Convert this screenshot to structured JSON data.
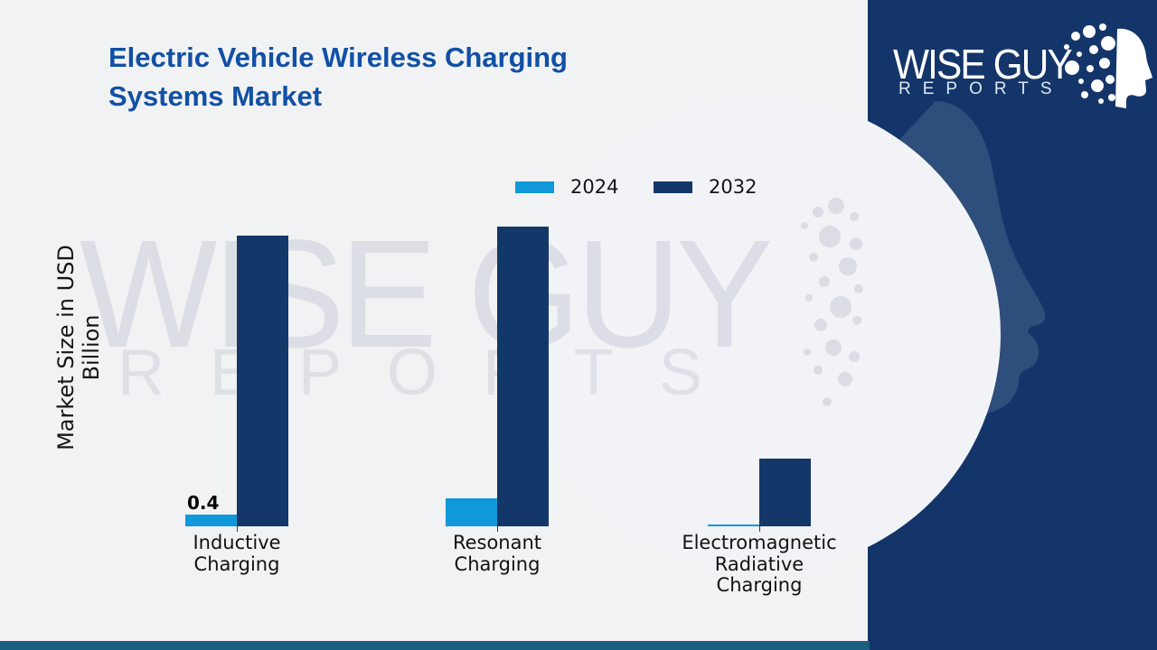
{
  "meta": {
    "background_color": "#f1f2f3",
    "panel_color": "#143569",
    "footer_color": "#1c5f80",
    "title_color": "#1150a5"
  },
  "title": {
    "text": "Electric Vehicle Wireless Charging Systems Market"
  },
  "brand": {
    "line1": "WISE GUY",
    "line2": "REPORTS"
  },
  "watermark": {
    "line1": "WISE GUY",
    "line2": "REPORTS"
  },
  "chart_data": {
    "type": "bar",
    "title": "Electric Vehicle Wireless Charging Systems Market",
    "ylabel": "Market Size in USD Billion",
    "xlabel": "",
    "categories": [
      "Inductive Charging",
      "Resonant Charging",
      "Electromagnetic Radiative Charging"
    ],
    "series": [
      {
        "name": "2024",
        "color": "#1198da",
        "values": [
          0.4,
          0.95,
          0.05
        ]
      },
      {
        "name": "2032",
        "color": "#133768",
        "values": [
          9.9,
          10.2,
          2.3
        ]
      }
    ],
    "data_labels": [
      {
        "series": "2024",
        "category_index": 0,
        "text": "0.4"
      }
    ],
    "ylim": [
      0,
      10.8
    ],
    "grid": false,
    "legend_position": "top-center"
  }
}
